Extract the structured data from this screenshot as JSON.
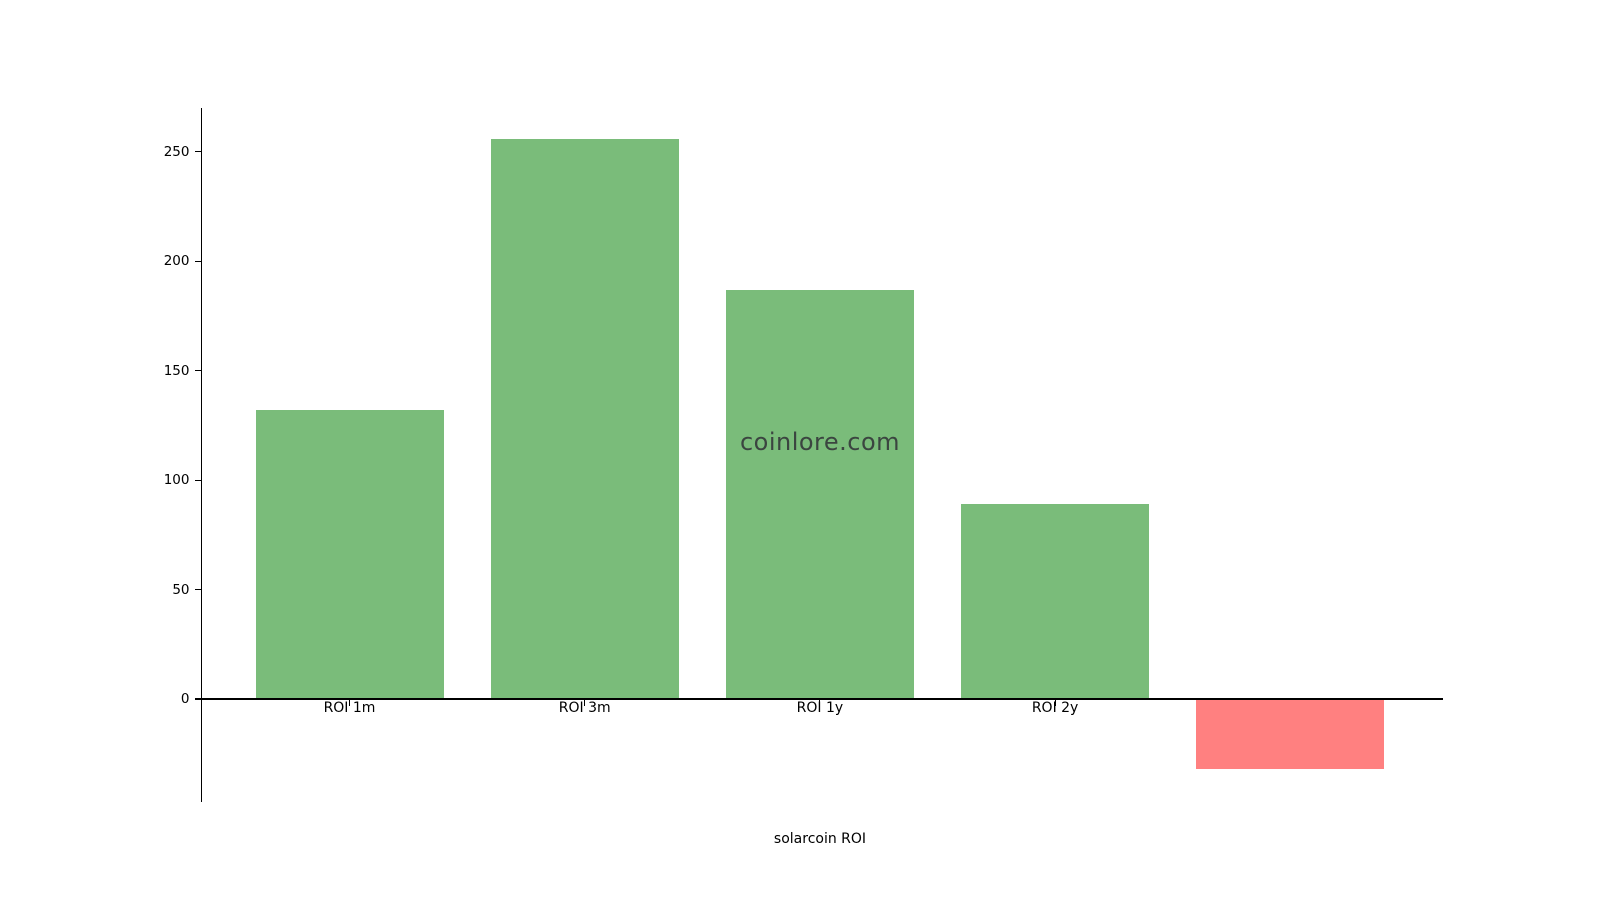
{
  "watermark": {
    "text": "coinlore.com",
    "color": "#3b4540"
  },
  "chart_data": {
    "type": "bar",
    "title": "solarcoin ROI",
    "xlabel": "solarcoin ROI",
    "ylabel": "",
    "categories": [
      "ROI 1m",
      "ROI 3m",
      "ROI 1y",
      "ROI 2y",
      ""
    ],
    "values": [
      132,
      256,
      187,
      89,
      -32
    ],
    "yticks": [
      0,
      50,
      100,
      150,
      200,
      250
    ],
    "ylim": [
      -47,
      270
    ],
    "grid": false,
    "legend_position": "none",
    "colors": {
      "positive_bar": "#7abc7a",
      "negative_bar": "#ff8080",
      "axis": "#000000",
      "text": "#000000"
    }
  }
}
